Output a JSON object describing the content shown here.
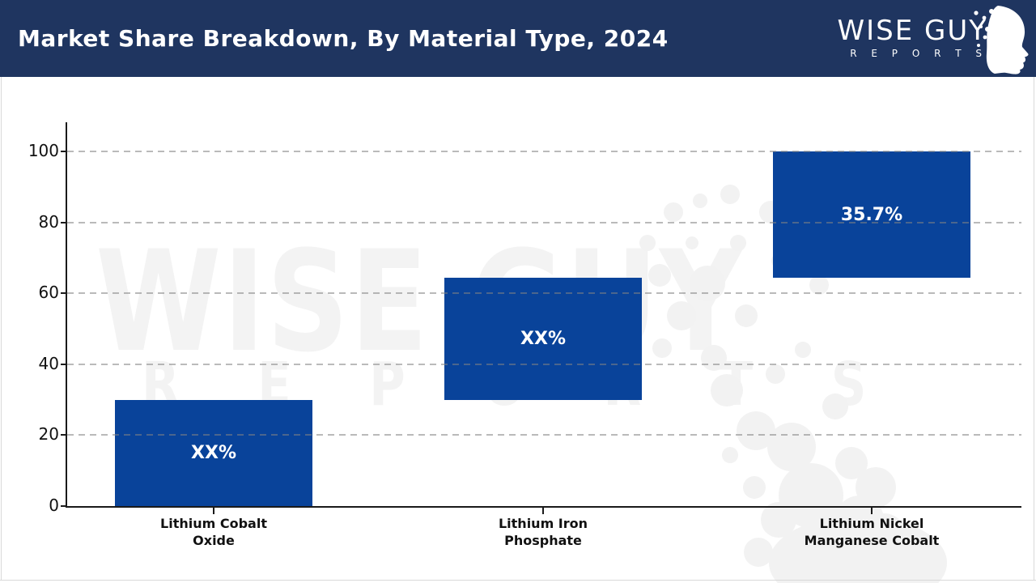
{
  "header": {
    "title": "Market Share Breakdown, By Material Type, 2024",
    "bg_color": "#1f3560",
    "logo": {
      "line1": "WISE GUY",
      "line2": "R E P O R T S"
    }
  },
  "watermark": {
    "line1": "WISE GUY",
    "line2": "R E P O R T S"
  },
  "chart_data": {
    "type": "bar",
    "subtype": "waterfall-stacked-segments",
    "title": "",
    "xlabel": "",
    "ylabel": "",
    "categories": [
      "Lithium Cobalt\nOxide",
      "Lithium Iron\nPhosphate",
      "Lithium Nickel\nManganese Cobalt"
    ],
    "series": [
      {
        "name": "Market Share %",
        "segments": [
          {
            "category": "Lithium Cobalt Oxide",
            "start": 0,
            "end": 30,
            "label": "XX%"
          },
          {
            "category": "Lithium Iron Phosphate",
            "start": 30,
            "end": 64.3,
            "label": "XX%"
          },
          {
            "category": "Lithium Nickel Manganese Cobalt",
            "start": 64.3,
            "end": 100,
            "label": "35.7%"
          }
        ]
      }
    ],
    "ylim": [
      0,
      100
    ],
    "yticks": [
      0,
      20,
      40,
      60,
      80,
      100
    ],
    "grid": "horizontal-dashed",
    "legend": "none",
    "bar_color": "#09439a",
    "bar_label_color": "#ffffff",
    "axis_color": "#1a1a1a",
    "grid_color": "#c9c9c9"
  }
}
